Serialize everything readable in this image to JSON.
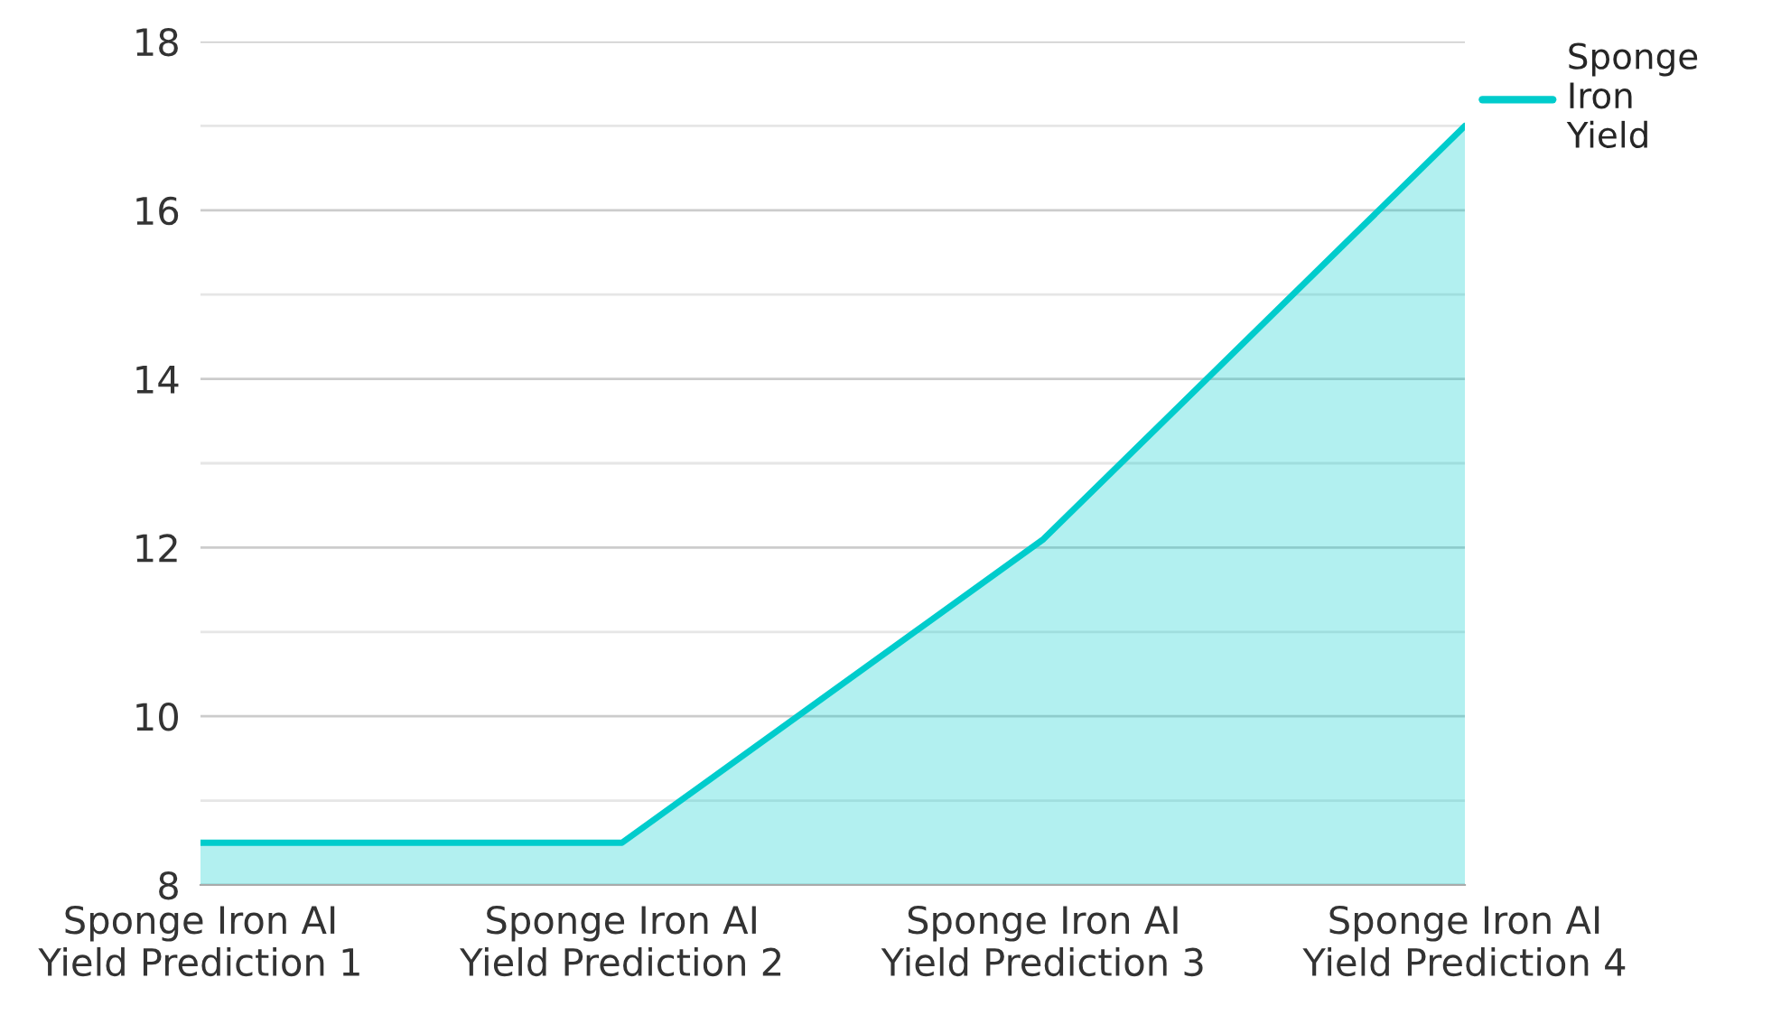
{
  "chart_data": {
    "type": "area",
    "categories": [
      "Sponge Iron AI Yield Prediction 1",
      "Sponge Iron AI Yield Prediction 2",
      "Sponge Iron AI Yield Prediction 3",
      "Sponge Iron AI Yield Prediction 4"
    ],
    "series": [
      {
        "name": "Sponge Iron Yield",
        "color": "#00cccc",
        "values": [
          8.5,
          8.5,
          12.1,
          17
        ]
      }
    ],
    "ylim": [
      8,
      18
    ],
    "yticks": [
      8,
      {
        "value": 9,
        "label": null
      },
      10,
      {
        "value": 11,
        "label": null
      },
      12,
      {
        "value": 13,
        "label": null
      },
      14,
      {
        "value": 15,
        "label": null
      },
      16,
      {
        "value": 17,
        "label": null
      },
      18
    ],
    "grid": "y",
    "legend": "top right"
  }
}
